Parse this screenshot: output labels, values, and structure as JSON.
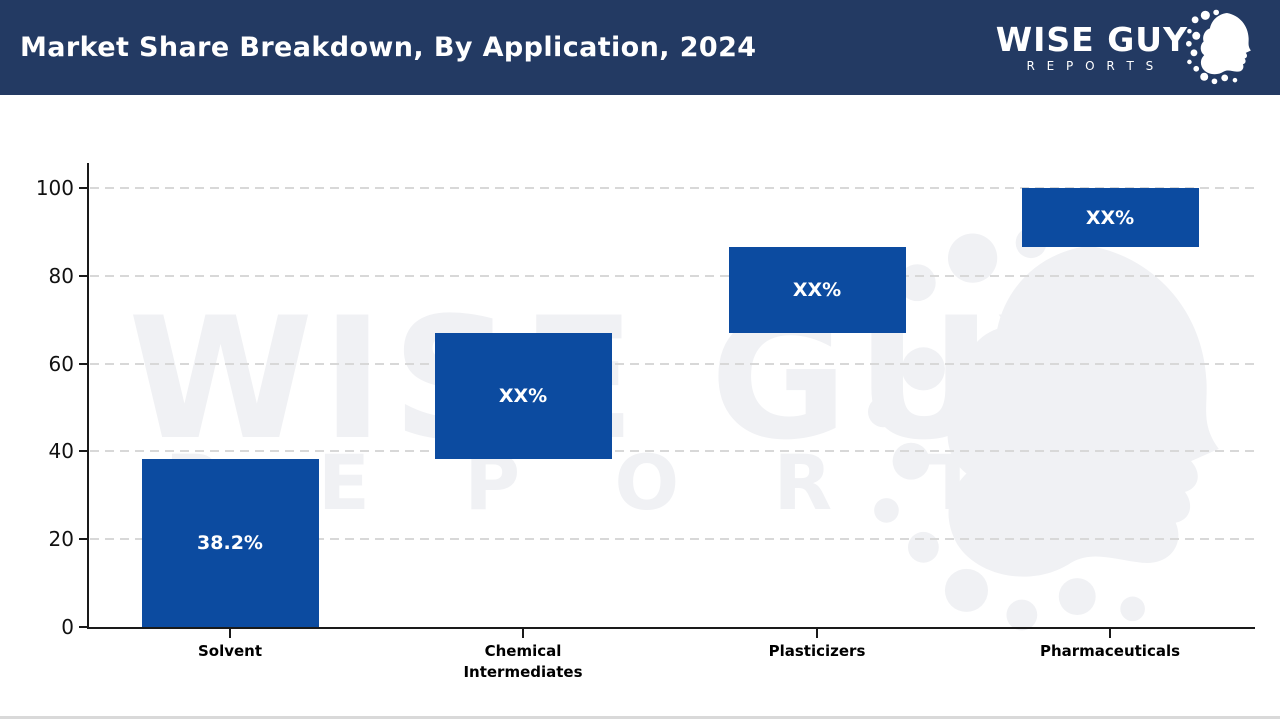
{
  "header": {
    "title": "Market Share Breakdown, By Application, 2024",
    "logo_line1": "WISE GUY",
    "logo_line2": "R E P O R T S",
    "background": "#233a63"
  },
  "watermark": {
    "line1": "WISE GUY",
    "line2": "R E P O R T S"
  },
  "chart_data": {
    "type": "bar",
    "variant": "waterfall",
    "title": "Market Share Breakdown, By Application, 2024",
    "categories": [
      "Solvent",
      "Chemical Intermediates",
      "Plasticizers",
      "Pharmaceuticals"
    ],
    "segments": [
      {
        "category": "Solvent",
        "start": 0,
        "end": 38.2,
        "label": "38.2%"
      },
      {
        "category": "Chemical Intermediates",
        "start": 38.2,
        "end": 67,
        "label": "XX%"
      },
      {
        "category": "Plasticizers",
        "start": 67,
        "end": 86.5,
        "label": "XX%"
      },
      {
        "category": "Pharmaceuticals",
        "start": 86.5,
        "end": 100,
        "label": "XX%"
      }
    ],
    "ylim": [
      0,
      100
    ],
    "yticks": [
      0,
      20,
      40,
      60,
      80,
      100
    ],
    "grid": "horizontal-dashed",
    "legend": "none",
    "colors": {
      "bar": "#0c4ba0",
      "bar_label": "#ffffff",
      "header_bg": "#233a63",
      "axis": "#1a1a1a",
      "gridline": "#d8d8d8",
      "tick_label": "#111111",
      "watermark": "#f0f1f4"
    }
  }
}
